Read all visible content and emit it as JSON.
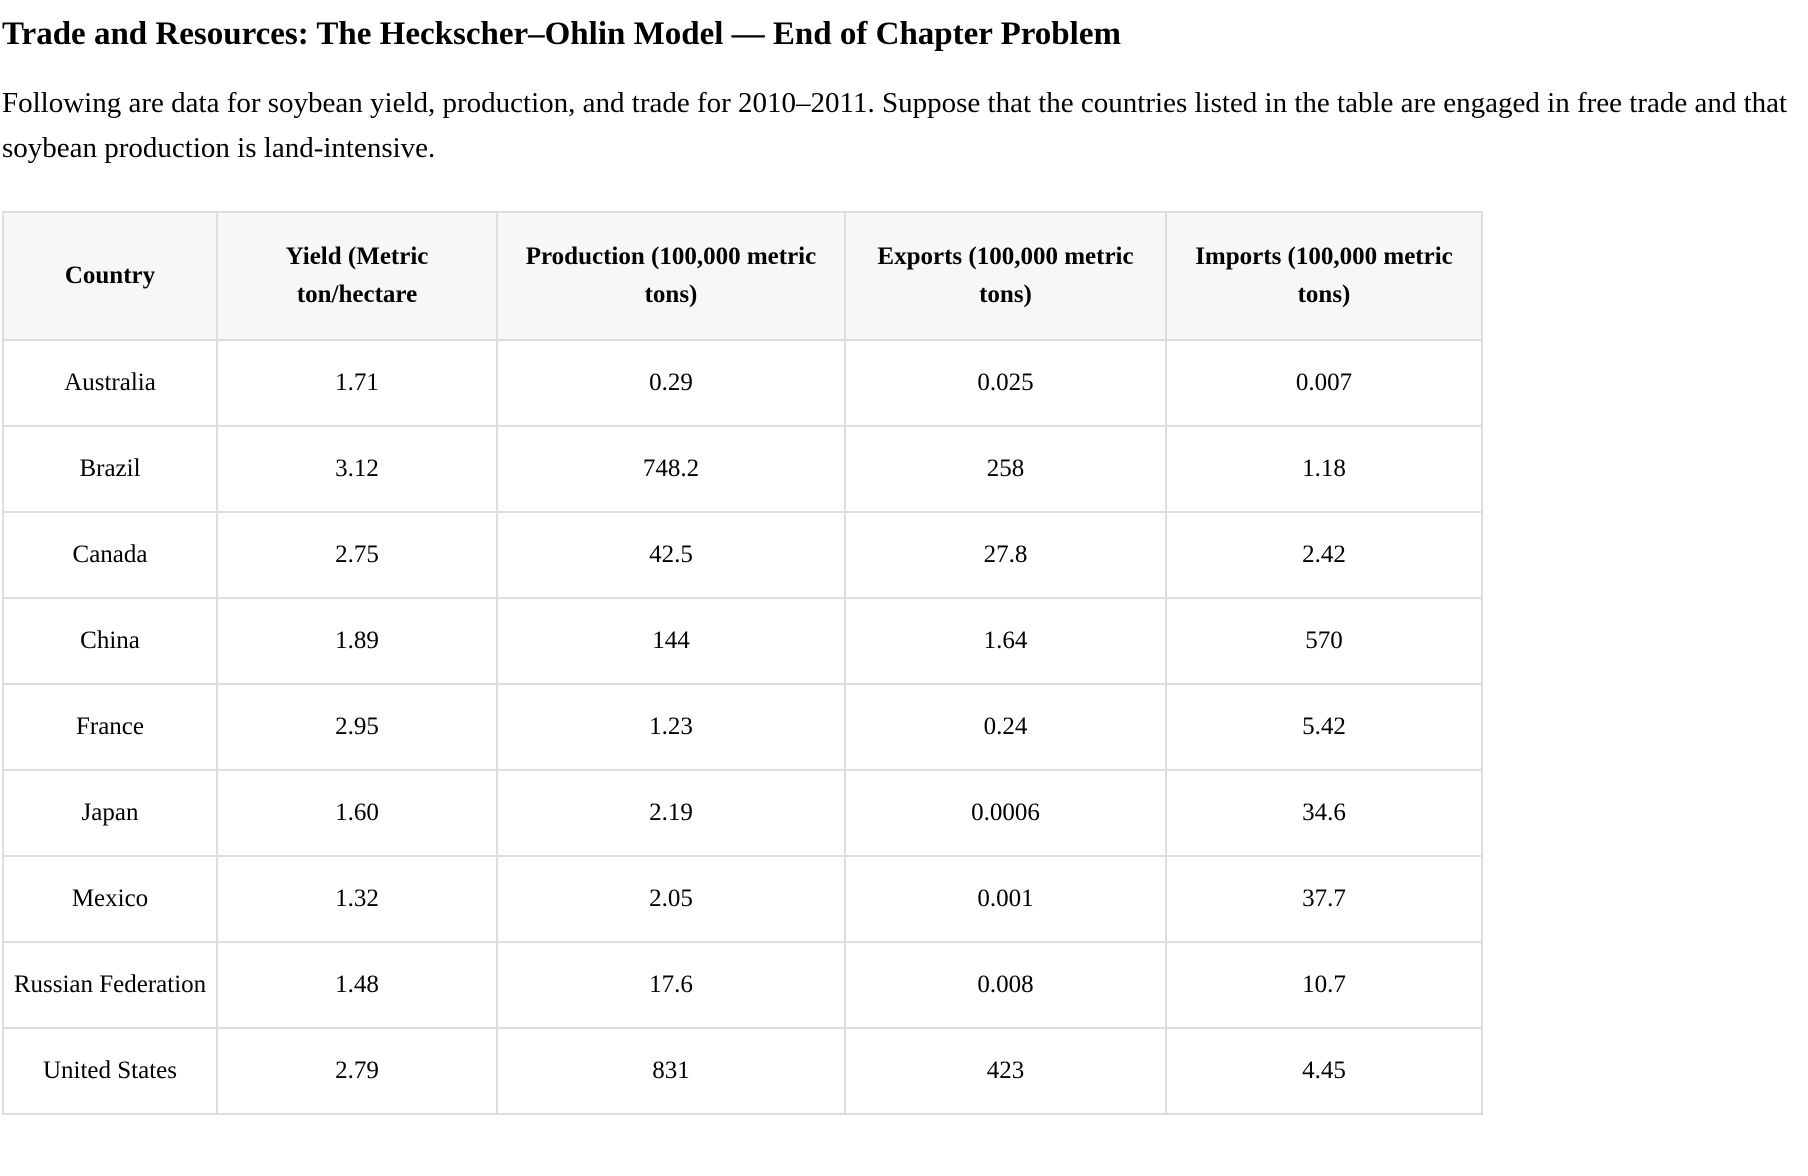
{
  "page": {
    "title": "Trade and Resources: The Heckscher–Ohlin Model — End of Chapter Problem",
    "intro": "Following are data for soybean yield, production, and trade for 2010–2011. Suppose that the countries listed in the table are engaged in free trade and that soybean production is land-intensive."
  },
  "colors": {
    "header_bg": "#f7f7f7",
    "border": "#dddddd",
    "text": "#000000",
    "page_bg": "#ffffff"
  },
  "table": {
    "columns": [
      "Country",
      "Yield (Metric ton/hectare",
      "Production (100,000 metric tons)",
      "Exports (100,000 metric tons)",
      "Imports (100,000 metric tons)"
    ],
    "rows": [
      {
        "country": "Australia",
        "yield": "1.71",
        "production": "0.29",
        "exports": "0.025",
        "imports": "0.007"
      },
      {
        "country": "Brazil",
        "yield": "3.12",
        "production": "748.2",
        "exports": "258",
        "imports": "1.18"
      },
      {
        "country": "Canada",
        "yield": "2.75",
        "production": "42.5",
        "exports": "27.8",
        "imports": "2.42"
      },
      {
        "country": "China",
        "yield": "1.89",
        "production": "144",
        "exports": "1.64",
        "imports": "570"
      },
      {
        "country": "France",
        "yield": "2.95",
        "production": "1.23",
        "exports": "0.24",
        "imports": "5.42"
      },
      {
        "country": "Japan",
        "yield": "1.60",
        "production": "2.19",
        "exports": "0.0006",
        "imports": "34.6"
      },
      {
        "country": "Mexico",
        "yield": "1.32",
        "production": "2.05",
        "exports": "0.001",
        "imports": "37.7"
      },
      {
        "country": "Russian Federation",
        "yield": "1.48",
        "production": "17.6",
        "exports": "0.008",
        "imports": "10.7"
      },
      {
        "country": "United States",
        "yield": "2.79",
        "production": "831",
        "exports": "423",
        "imports": "4.45"
      }
    ]
  }
}
